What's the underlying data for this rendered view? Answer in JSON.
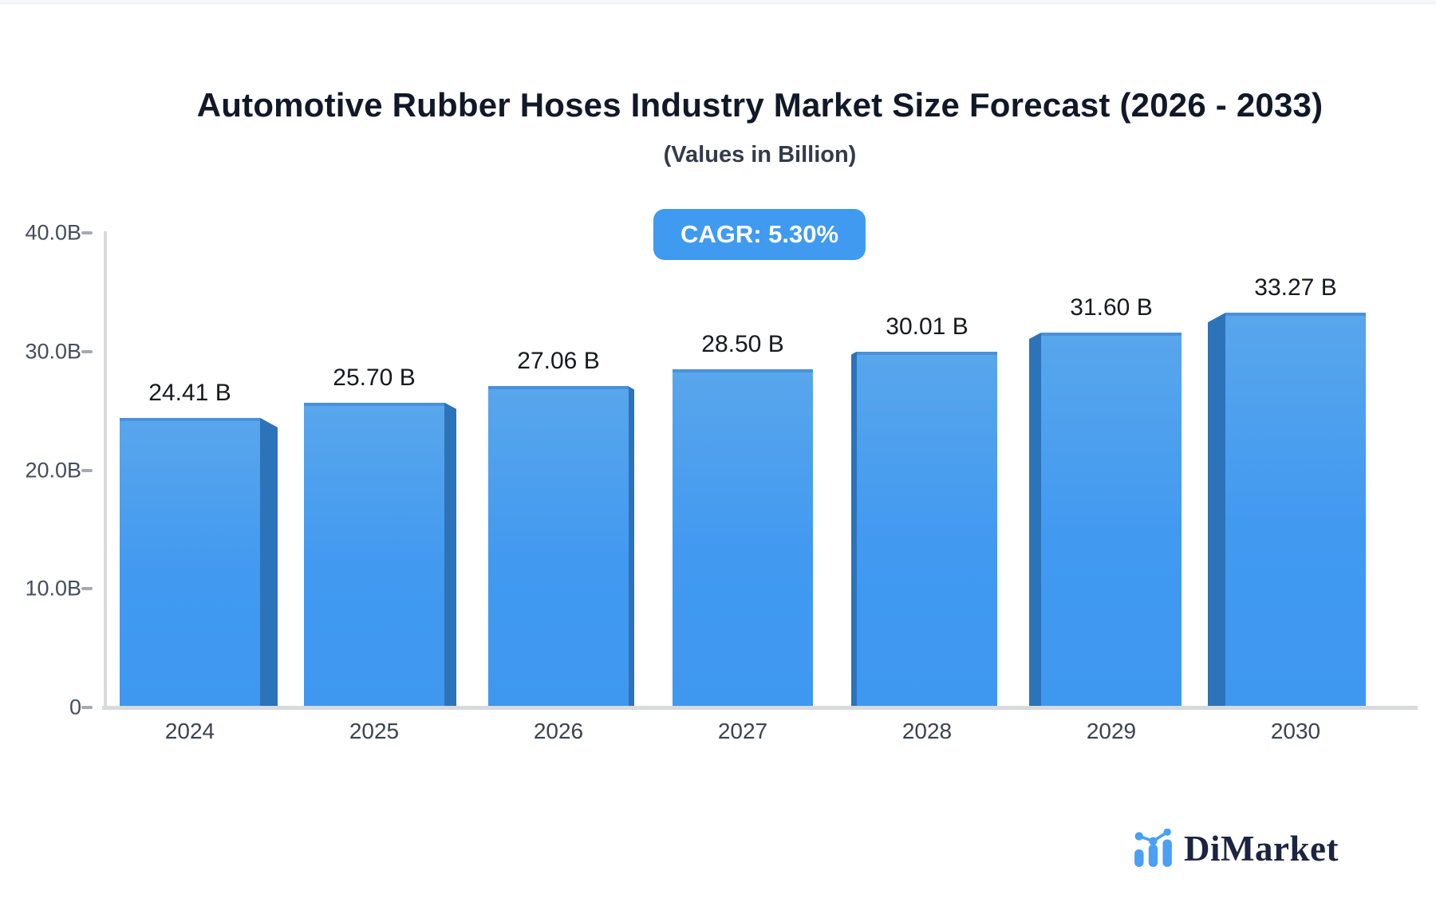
{
  "chart": {
    "title": "Automotive Rubber Hoses Industry Market Size Forecast (2026 - 2033)",
    "subtitle": "(Values in Billion)",
    "cagr_label": "CAGR: 5.30%"
  },
  "chart_data": {
    "type": "bar",
    "title": "Automotive Rubber Hoses Industry Market Size Forecast (2026 - 2033)",
    "subtitle": "(Values in Billion)",
    "cagr_percent": 5.3,
    "categories": [
      "2024",
      "2025",
      "2026",
      "2027",
      "2028",
      "2029",
      "2030"
    ],
    "values": [
      24.41,
      25.7,
      27.06,
      28.5,
      30.01,
      31.6,
      33.27
    ],
    "value_labels": [
      "24.41 B",
      "25.70 B",
      "27.06 B",
      "28.50 B",
      "30.01 B",
      "31.60 B",
      "33.27 B"
    ],
    "xlabel": "",
    "ylabel": "",
    "ylim": [
      0,
      40
    ],
    "yticks": [
      {
        "value": 40,
        "label": "40.0B"
      },
      {
        "value": 30,
        "label": "30.0B"
      },
      {
        "value": 20,
        "label": "20.0B"
      },
      {
        "value": 10,
        "label": "10.0B"
      },
      {
        "value": 0,
        "label": "0"
      }
    ],
    "grid": false,
    "legend": "none",
    "style_3d": "center-perspective extruded bars",
    "colors": {
      "bar_face_top": "#58a6ec",
      "bar_face_bottom": "#3f98f0",
      "bar_top_edge": "#4b90dc",
      "bar_side": "#2c73b9",
      "badge_background": "#3f9af0",
      "badge_text": "#ffffff",
      "axis_line": "#d8dade",
      "tick_dash": "#a5aab2",
      "title_text": "#111827",
      "value_label_text": "#16191e",
      "logo_blue": "#4aa0f4",
      "logo_text": "#1b2440"
    }
  },
  "logo": {
    "text": "DiMarket",
    "icon": "dimarket-bars-icon"
  }
}
